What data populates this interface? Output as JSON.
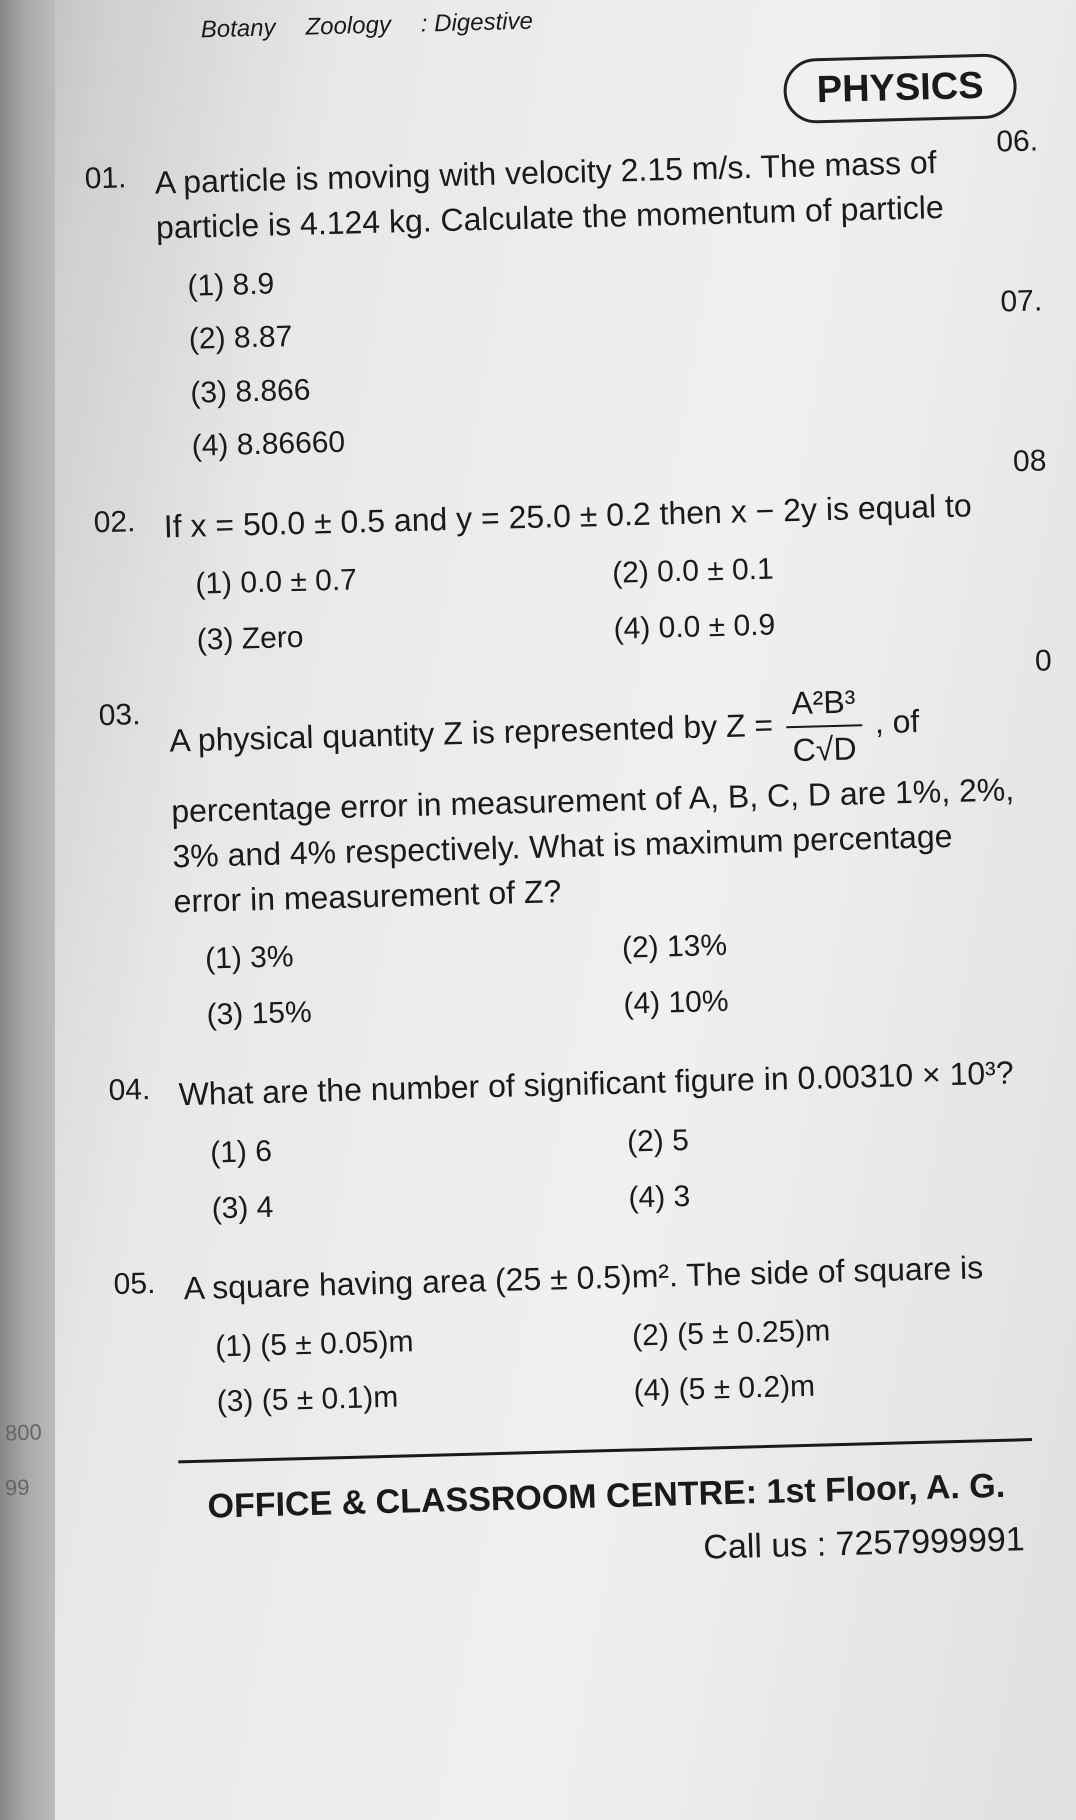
{
  "header": {
    "label1": "Botany",
    "label2": "Zoology",
    "label3": ": Digestive",
    "subject": "PHYSICS"
  },
  "side_numbers": {
    "n06": "06.",
    "n07": "07.",
    "n08": "08",
    "n0": "0"
  },
  "side_text": {
    "t1": "800",
    "t2": "99"
  },
  "questions": [
    {
      "num": "01.",
      "text": "A particle is moving with velocity 2.15 m/s. The mass of particle is 4.124 kg. Calculate the momentum of particle",
      "options": [
        "(1) 8.9",
        "(2) 8.87",
        "(3) 8.866",
        "(4) 8.86660"
      ],
      "layout": "one-col"
    },
    {
      "num": "02.",
      "text": "If x = 50.0 ± 0.5 and y = 25.0 ± 0.2 then x − 2y is equal to",
      "options": [
        "(1) 0.0 ± 0.7",
        "(2) 0.0 ± 0.1",
        "(3) Zero",
        "(4) 0.0 ± 0.9"
      ],
      "layout": "two-col"
    },
    {
      "num": "03.",
      "text_pre": "A physical quantity Z is represented by Z = ",
      "frac_num": "A²B³",
      "frac_den": "C√D",
      "text_post": ", of percentage error in measurement of A, B, C, D are 1%, 2%, 3% and 4% respectively. What is maximum percentage error in measurement of Z?",
      "options": [
        "(1) 3%",
        "(2) 13%",
        "(3) 15%",
        "(4) 10%"
      ],
      "layout": "two-col"
    },
    {
      "num": "04.",
      "text": "What are the number of significant figure in 0.00310 × 10³?",
      "options": [
        "(1) 6",
        "(2) 5",
        "(3) 4",
        "(4) 3"
      ],
      "layout": "two-col"
    },
    {
      "num": "05.",
      "text": "A square having area (25 ± 0.5)m². The side of square is",
      "options": [
        "(1) (5 ± 0.05)m",
        "(2) (5 ± 0.25)m",
        "(3) (5 ± 0.1)m",
        "(4) (5 ± 0.2)m"
      ],
      "layout": "two-col"
    }
  ],
  "footer": {
    "line1": "OFFICE & CLASSROOM CENTRE: 1st Floor, A. G.",
    "line2": "Call us : 7257999991"
  }
}
